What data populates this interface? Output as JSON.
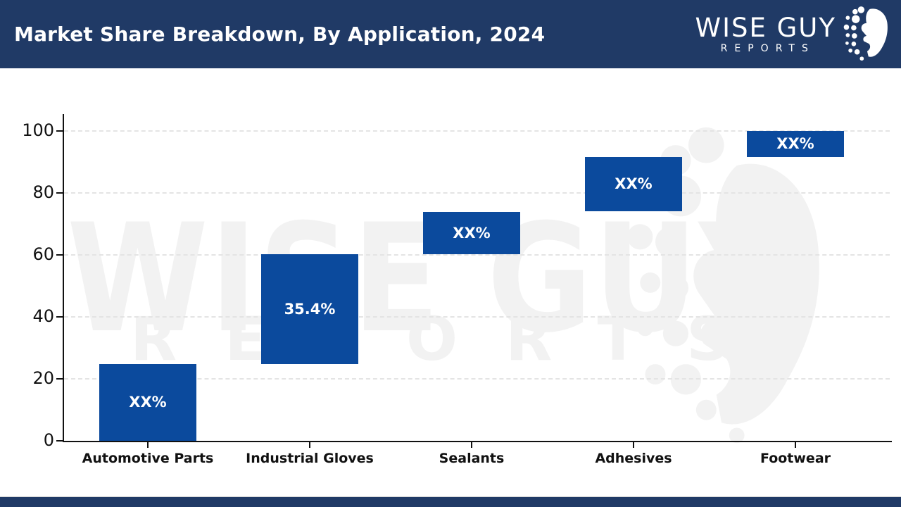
{
  "header": {
    "title": "Market Share Breakdown, By Application, 2024",
    "background_color": "#203a66",
    "logo": {
      "line1": "WISE GUY",
      "line2": "REPORTS"
    }
  },
  "watermark": {
    "line1": "WISE GUY",
    "line2": "REPORTS"
  },
  "chart_data": {
    "type": "bar",
    "subtype": "waterfall-floating-segments",
    "title": "Market Share Breakdown, By Application, 2024",
    "xlabel": "",
    "ylabel": "",
    "categories": [
      "Automotive Parts",
      "Industrial Gloves",
      "Sealants",
      "Adhesives",
      "Footwear"
    ],
    "segments": [
      {
        "category": "Automotive Parts",
        "start": 0,
        "end": 24.8,
        "label": "XX%"
      },
      {
        "category": "Industrial Gloves",
        "start": 24.8,
        "end": 60.2,
        "label": "35.4%"
      },
      {
        "category": "Sealants",
        "start": 60.2,
        "end": 73.9,
        "label": "XX%"
      },
      {
        "category": "Adhesives",
        "start": 74.2,
        "end": 91.5,
        "label": "XX%"
      },
      {
        "category": "Footwear",
        "start": 91.7,
        "end": 100,
        "label": "XX%"
      }
    ],
    "yticks": [
      0,
      20,
      40,
      60,
      80,
      100
    ],
    "ylim": [
      0,
      105
    ],
    "bar_color": "#0b4a9d",
    "grid": "horizontal-dashed",
    "legend_position": "none"
  },
  "colors": {
    "header_navy": "#203a66",
    "bar_blue": "#0b4a9d",
    "watermark_gray": "#f2f2f2",
    "gridline_gray": "#e4e4e4",
    "axis_black": "#111111"
  }
}
